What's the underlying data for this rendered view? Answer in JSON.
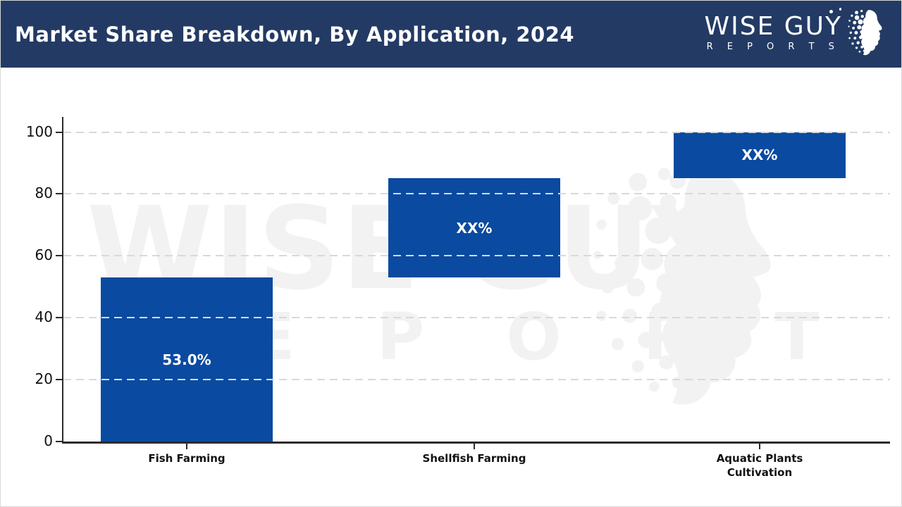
{
  "header": {
    "title": "Market Share Breakdown, By Application, 2024",
    "logo": {
      "main_part1": "WISE GU",
      "main_part2": "Y",
      "sub": "R E P O R T S"
    }
  },
  "watermark": {
    "line1_part1": "WISE GU",
    "line1_part2": "Y",
    "line2": "R E P O R T S"
  },
  "chart_data": {
    "type": "bar",
    "subtype": "waterfall-stacked-percent",
    "title": "Market Share Breakdown, By Application, 2024",
    "categories": [
      "Fish Farming",
      "Shellfish Farming",
      "Aquatic Plants Cultivation"
    ],
    "segments": [
      {
        "category": "Fish Farming",
        "start": 0,
        "end": 53,
        "label": "53.0%"
      },
      {
        "category": "Shellfish Farming",
        "start": 53,
        "end": 85,
        "label": "XX%"
      },
      {
        "category": "Aquatic Plants Cultivation",
        "start": 85,
        "end": 100,
        "label": "XX%"
      }
    ],
    "ylabel": "",
    "xlabel": "",
    "ylim": [
      0,
      105
    ],
    "yticks": [
      0,
      20,
      40,
      60,
      80,
      100
    ],
    "grid": "horizontal-dashed-over-bars",
    "legend": "none"
  },
  "colors": {
    "header_bg": "#233a64",
    "bar": "#0a4aa0",
    "bar_label": "#ffffff",
    "grid": "#d9d9d9",
    "axis": "#2b2b2b",
    "watermark": "#f2f2f2",
    "page_border": "#d9d9d9"
  }
}
